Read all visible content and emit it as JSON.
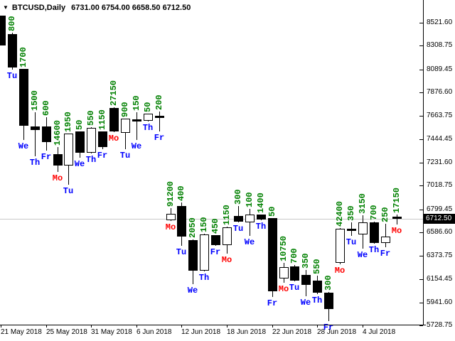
{
  "title_bar": {
    "dropdown_icon": "▼",
    "title": "BTCUSD,Daily",
    "ohlc_text": "6731.00 6754.00 6658.50 6712.50"
  },
  "colors": {
    "background": "#ffffff",
    "axis": "#000000",
    "bull_body": "#ffffff",
    "bear_body": "#000000",
    "volume_label": "#008000",
    "weekday_label": "#0000ff",
    "monday_label": "#ff0000",
    "current_price_line": "#c8c8c8",
    "price_box_bg": "#000000",
    "price_box_text": "#ffffff"
  },
  "price_marker": {
    "value": "6712.50"
  },
  "y_axis": {
    "tick_labels": [
      "8521.60",
      "8308.75",
      "8089.45",
      "7876.60",
      "7663.75",
      "7444.45",
      "7231.60",
      "7018.75",
      "6799.45",
      "6586.60",
      "6373.75",
      "6154.45",
      "5941.60",
      "5728.75"
    ]
  },
  "x_axis": {
    "labels": [
      "21 May 2018",
      "25 May 2018",
      "31 May 2018",
      "6 Jun 2018",
      "12 Jun 2018",
      "18 Jun 2018",
      "22 Jun 2018",
      "28 Jun 2018",
      "4 Jul 2018"
    ]
  },
  "chart_data": {
    "type": "candlestick",
    "symbol": "BTCUSD",
    "timeframe": "Daily",
    "title": "BTCUSD,Daily  6731.00 6754.00 6658.50 6712.50",
    "current_price": 6712.5,
    "last_candle_ohlc": {
      "open": 6731.0,
      "high": 6754.0,
      "low": 6658.5,
      "close": 6712.5
    },
    "y_axis_ticks": [
      8521.6,
      8308.75,
      8089.45,
      7876.6,
      7663.75,
      7444.45,
      7231.6,
      7018.75,
      6799.45,
      6586.6,
      6373.75,
      6154.45,
      5941.6,
      5728.75
    ],
    "x_axis_dates": [
      {
        "label": "21 May 2018",
        "candle_index": 0
      },
      {
        "label": "25 May 2018",
        "candle_index": 4
      },
      {
        "label": "31 May 2018",
        "candle_index": 8
      },
      {
        "label": "6 Jun 2018",
        "candle_index": 12
      },
      {
        "label": "12 Jun 2018",
        "candle_index": 16
      },
      {
        "label": "18 Jun 2018",
        "candle_index": 20
      },
      {
        "label": "22 Jun 2018",
        "candle_index": 24
      },
      {
        "label": "28 Jun 2018",
        "candle_index": 28
      },
      {
        "label": "4 Jul 2018",
        "candle_index": 32
      }
    ],
    "candles": [
      {
        "day": "",
        "volume": "",
        "open": 8585,
        "high": 8585,
        "low": 8310,
        "close": 8310
      },
      {
        "day": "Tu",
        "volume": "800",
        "open": 8415,
        "high": 8430,
        "low": 8090,
        "close": 8110
      },
      {
        "day": "We",
        "volume": "1700",
        "open": 8095,
        "high": 8095,
        "low": 7440,
        "close": 7570
      },
      {
        "day": "Th",
        "volume": "1500",
        "open": 7565,
        "high": 7695,
        "low": 7290,
        "close": 7530
      },
      {
        "day": "Fr",
        "volume": "600",
        "open": 7565,
        "high": 7650,
        "low": 7340,
        "close": 7420
      },
      {
        "day": "Mo",
        "volume": "14600",
        "open": 7310,
        "high": 7375,
        "low": 7145,
        "close": 7205
      },
      {
        "day": "Tu",
        "volume": "1950",
        "open": 7205,
        "high": 7500,
        "low": 7025,
        "close": 7500
      },
      {
        "day": "We",
        "volume": "50",
        "open": 7520,
        "high": 7520,
        "low": 7275,
        "close": 7320
      },
      {
        "day": "Th",
        "volume": "550",
        "open": 7320,
        "high": 7555,
        "low": 7315,
        "close": 7550
      },
      {
        "day": "Fr",
        "volume": "1150",
        "open": 7520,
        "high": 7520,
        "low": 7355,
        "close": 7375
      },
      {
        "day": "Mo",
        "volume": "27150",
        "open": 7735,
        "high": 7740,
        "low": 7515,
        "close": 7520
      },
      {
        "day": "Tu",
        "volume": "900",
        "open": 7505,
        "high": 7640,
        "low": 7355,
        "close": 7635
      },
      {
        "day": "We",
        "volume": "150",
        "open": 7630,
        "high": 7695,
        "low": 7440,
        "close": 7610
      },
      {
        "day": "Th",
        "volume": "50",
        "open": 7615,
        "high": 7685,
        "low": 7610,
        "close": 7680
      },
      {
        "day": "Fr",
        "volume": "200",
        "open": 7665,
        "high": 7700,
        "low": 7520,
        "close": 7645
      },
      {
        "day": "Mo",
        "volume": "91200",
        "open": 6700,
        "high": 6810,
        "low": 6695,
        "close": 6760
      },
      {
        "day": "Tu",
        "volume": "400",
        "open": 6830,
        "high": 6865,
        "low": 6465,
        "close": 6550
      },
      {
        "day": "We",
        "volume": "2050",
        "open": 6515,
        "high": 6520,
        "low": 6110,
        "close": 6235
      },
      {
        "day": "Th",
        "volume": "150",
        "open": 6235,
        "high": 6575,
        "low": 6230,
        "close": 6570
      },
      {
        "day": "Fr",
        "volume": "450",
        "open": 6560,
        "high": 6565,
        "low": 6465,
        "close": 6470
      },
      {
        "day": "Mo",
        "volume": "1150",
        "open": 6470,
        "high": 6640,
        "low": 6390,
        "close": 6635
      },
      {
        "day": "Tu",
        "volume": "300",
        "open": 6740,
        "high": 6830,
        "low": 6680,
        "close": 6685
      },
      {
        "day": "We",
        "volume": "100",
        "open": 6680,
        "high": 6805,
        "low": 6555,
        "close": 6750
      },
      {
        "day": "Th",
        "volume": "1400",
        "open": 6750,
        "high": 6755,
        "low": 6700,
        "close": 6705
      },
      {
        "day": "Fr",
        "volume": "50",
        "open": 6720,
        "high": 6720,
        "low": 5990,
        "close": 6045
      },
      {
        "day": "Mo",
        "volume": "10750",
        "open": 6160,
        "high": 6305,
        "low": 6120,
        "close": 6265
      },
      {
        "day": "Tu",
        "volume": "700",
        "open": 6275,
        "high": 6285,
        "low": 6135,
        "close": 6140
      },
      {
        "day": "We",
        "volume": "350",
        "open": 6195,
        "high": 6240,
        "low": 6000,
        "close": 6105
      },
      {
        "day": "Th",
        "volume": "550",
        "open": 6140,
        "high": 6190,
        "low": 6020,
        "close": 6030
      },
      {
        "day": "Fr",
        "volume": "300",
        "open": 6030,
        "high": 6035,
        "low": 5770,
        "close": 5880
      },
      {
        "day": "Mo",
        "volume": "42400",
        "open": 6305,
        "high": 6625,
        "low": 6295,
        "close": 6620
      },
      {
        "day": "Tu",
        "volume": "350",
        "open": 6620,
        "high": 6680,
        "low": 6555,
        "close": 6600
      },
      {
        "day": "We",
        "volume": "3150",
        "open": 6570,
        "high": 6745,
        "low": 6435,
        "close": 6680
      },
      {
        "day": "Th",
        "volume": "700",
        "open": 6680,
        "high": 6685,
        "low": 6485,
        "close": 6490
      },
      {
        "day": "Fr",
        "volume": "250",
        "open": 6490,
        "high": 6665,
        "low": 6450,
        "close": 6550
      },
      {
        "day": "Mo",
        "volume": "17150",
        "open": 6731.0,
        "high": 6754.0,
        "low": 6658.5,
        "close": 6712.5
      }
    ]
  }
}
